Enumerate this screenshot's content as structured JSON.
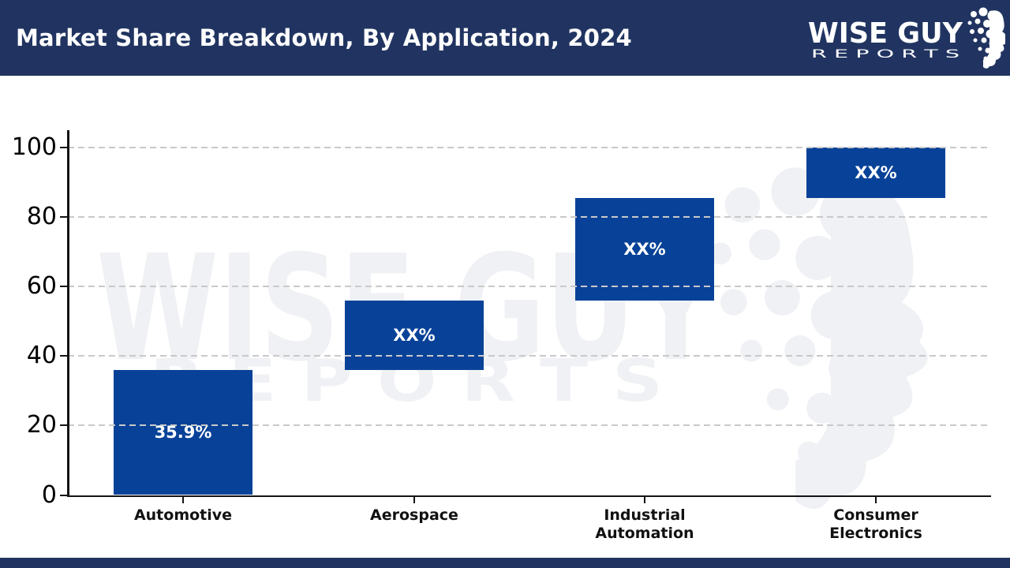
{
  "header": {
    "title": "Market Share Breakdown, By Application, 2024"
  },
  "logo": {
    "line1": "WISE GUY",
    "line2": "R E P O R T S"
  },
  "watermark": {
    "line1": "WISE GUY",
    "line2": "R E P O R T S"
  },
  "colors": {
    "header_bg": "#213461",
    "footer_bg": "#213461",
    "bar": "#084298",
    "grid": "#c9c9c9",
    "axis": "#141414",
    "bar_label": "#ffffff",
    "watermark": "#f0f1f4"
  },
  "chart_data": {
    "type": "bar",
    "subtype": "waterfall",
    "title": "Market Share Breakdown, By Application, 2024",
    "categories": [
      "Automotive",
      "Aerospace",
      "Industrial Automation",
      "Consumer Electronics"
    ],
    "segments": [
      {
        "category": "Automotive",
        "start": 0,
        "end": 35.9,
        "label": "35.9%"
      },
      {
        "category": "Aerospace",
        "start": 35.9,
        "end": 55.9,
        "label": "XX%"
      },
      {
        "category": "Industrial Automation",
        "start": 55.9,
        "end": 85.5,
        "label": "XX%"
      },
      {
        "category": "Consumer Electronics",
        "start": 85.5,
        "end": 100,
        "label": "XX%"
      }
    ],
    "yticks": [
      0,
      20,
      40,
      60,
      80,
      100
    ],
    "ylim": [
      0,
      100
    ],
    "xlabel": "",
    "ylabel": "",
    "grid": "horizontal dashed",
    "legend": "none",
    "bar_color": "#084298",
    "value_label_color": "#ffffff"
  }
}
